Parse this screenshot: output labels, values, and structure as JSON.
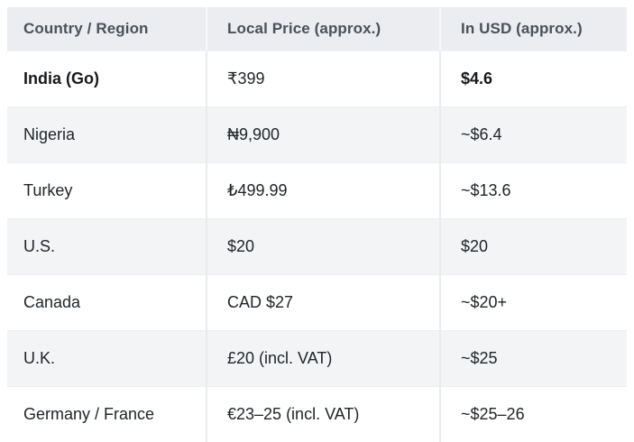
{
  "chart_data": {
    "type": "table",
    "title": "",
    "columns": [
      "Country / Region",
      "Local Price (approx.)",
      "In USD (approx.)"
    ],
    "rows": [
      {
        "country": "India (Go)",
        "local_price": "₹399",
        "usd": "$4.6",
        "emphasized": true
      },
      {
        "country": "Nigeria",
        "local_price": "₦9,900",
        "usd": "~$6.4",
        "emphasized": false
      },
      {
        "country": "Turkey",
        "local_price": "₺499.99",
        "usd": "~$13.6",
        "emphasized": false
      },
      {
        "country": "U.S.",
        "local_price": "$20",
        "usd": "$20",
        "emphasized": false
      },
      {
        "country": "Canada",
        "local_price": "CAD $27",
        "usd": "~$20+",
        "emphasized": false
      },
      {
        "country": "U.K.",
        "local_price": "£20 (incl. VAT)",
        "usd": "~$25",
        "emphasized": false
      },
      {
        "country": "Germany / France",
        "local_price": "€23–25 (incl. VAT)",
        "usd": "~$25–26",
        "emphasized": false
      }
    ],
    "layout": {
      "striped_rows": [
        2,
        4,
        6
      ],
      "header_position": "top"
    },
    "colors": {
      "header_background": "#ebedf0",
      "stripe_background": "#f3f4f6",
      "row_background": "#ffffff",
      "grid_line": "#e9ebee",
      "header_text": "#4a515a",
      "body_text": "#212529"
    }
  }
}
